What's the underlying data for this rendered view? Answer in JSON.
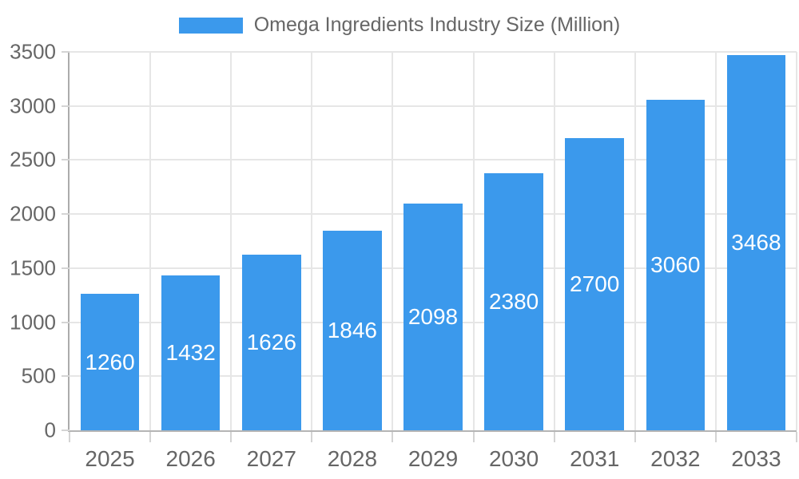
{
  "chart_data": {
    "type": "bar",
    "title": "Omega Ingredients Industry Size (Million)",
    "categories": [
      "2025",
      "2026",
      "2027",
      "2028",
      "2029",
      "2030",
      "2031",
      "2032",
      "2033"
    ],
    "series": [
      {
        "name": "Omega Ingredients Industry Size (Million)",
        "values": [
          1260,
          1432,
          1626,
          1846,
          2098,
          2380,
          2700,
          3060,
          3468
        ]
      }
    ],
    "xlabel": "",
    "ylabel": "",
    "ylim": [
      0,
      3500
    ],
    "yticks": [
      0,
      500,
      1000,
      1500,
      2000,
      2500,
      3000,
      3500
    ],
    "grid": true,
    "legend_position": "top",
    "value_labels": "inside-center",
    "colors": {
      "bar": "#3B99EC",
      "value_label": "#FFFFFF",
      "tick_label": "#666666",
      "grid": "#E6E6E6",
      "axis": "#ABABAB",
      "tick_mark": "#D4D4D4",
      "background": "#FFFFFF"
    }
  }
}
